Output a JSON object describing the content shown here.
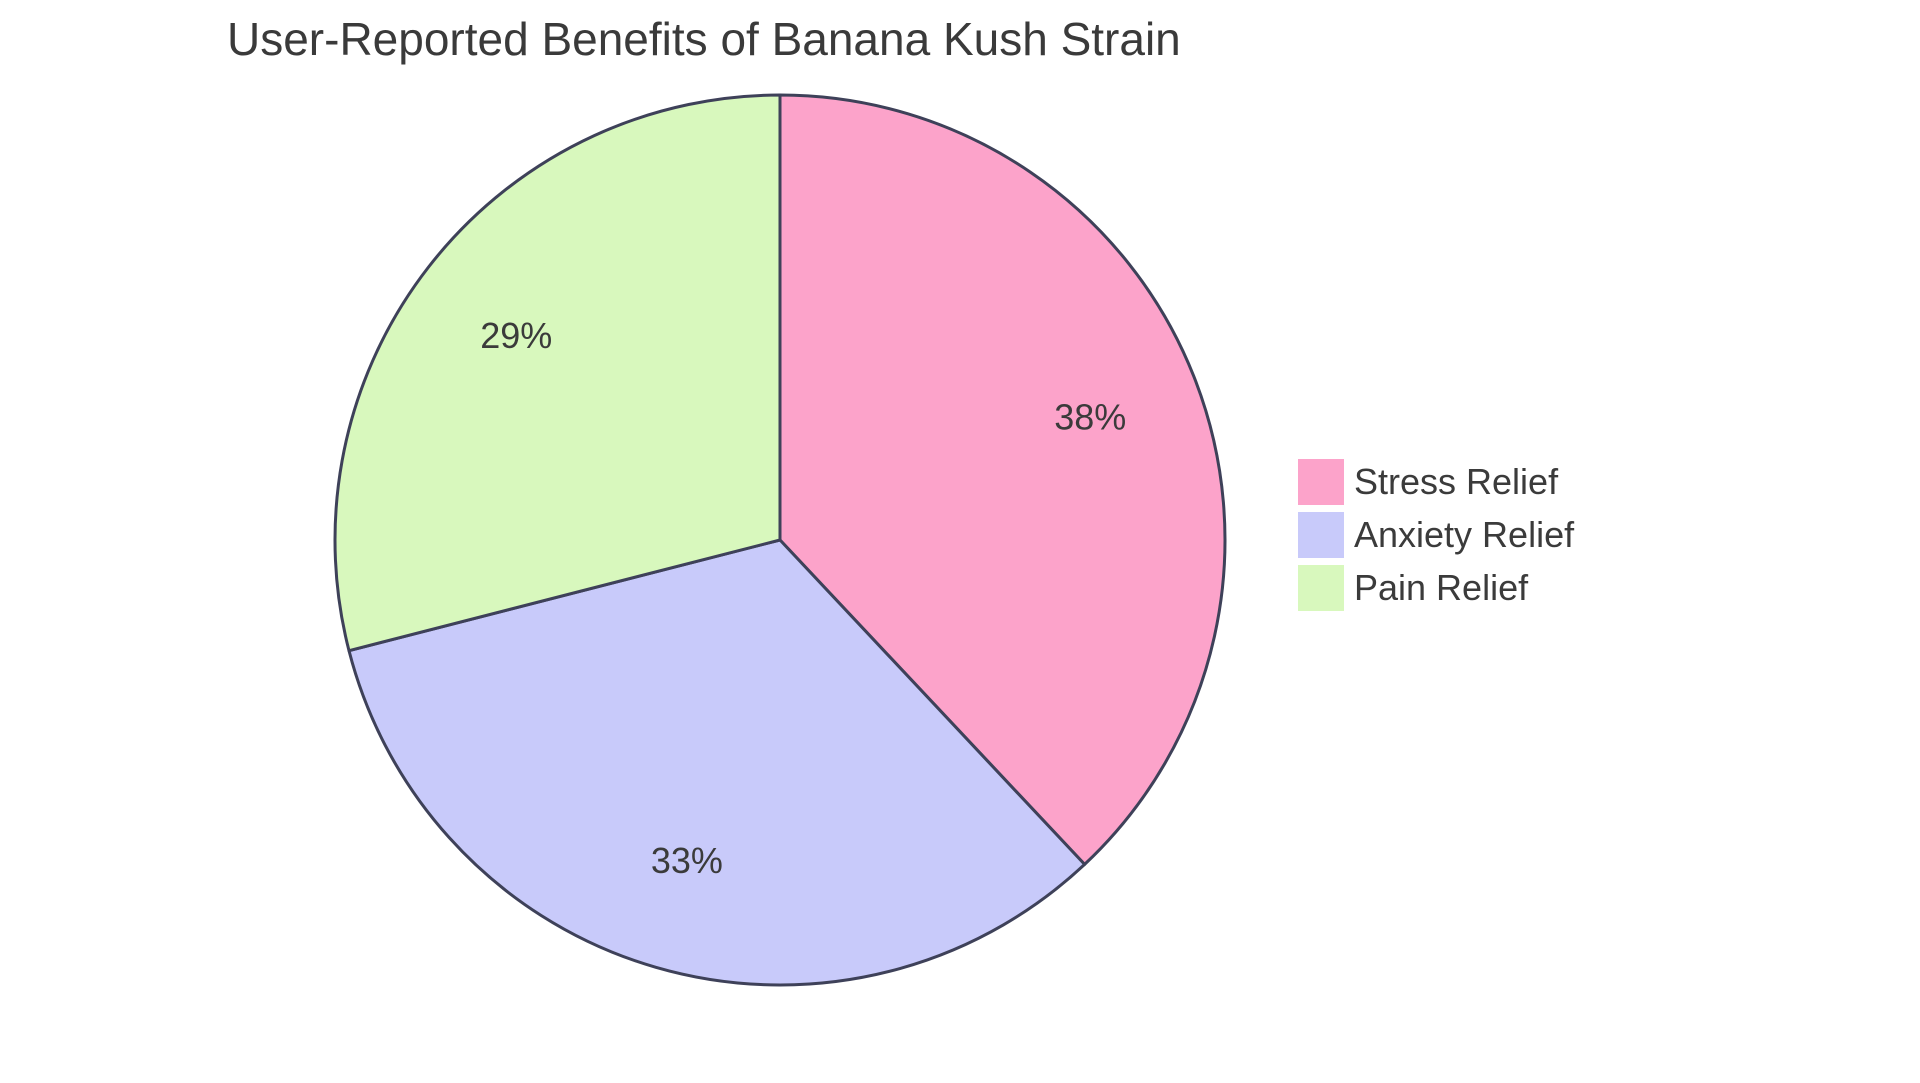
{
  "page": {
    "background_color": "#ffffff"
  },
  "chart_data": {
    "type": "pie",
    "title": "User-Reported Benefits of Banana Kush Strain",
    "slices": [
      {
        "label": "Stress Relief",
        "value": 38,
        "display": "38%",
        "color": "#FCA3CA"
      },
      {
        "label": "Anxiety Relief",
        "value": 33,
        "display": "33%",
        "color": "#C8CAFA"
      },
      {
        "label": "Pain Relief",
        "value": 29,
        "display": "29%",
        "color": "#D8F8BD"
      }
    ],
    "start_angle": "top",
    "direction": "clockwise",
    "stroke_color": "#3E4159",
    "stroke_width": 3,
    "label_color": "#3B3B3B",
    "title_color": "#3A3A3A",
    "legend_position": "right",
    "background": "#ffffff"
  }
}
